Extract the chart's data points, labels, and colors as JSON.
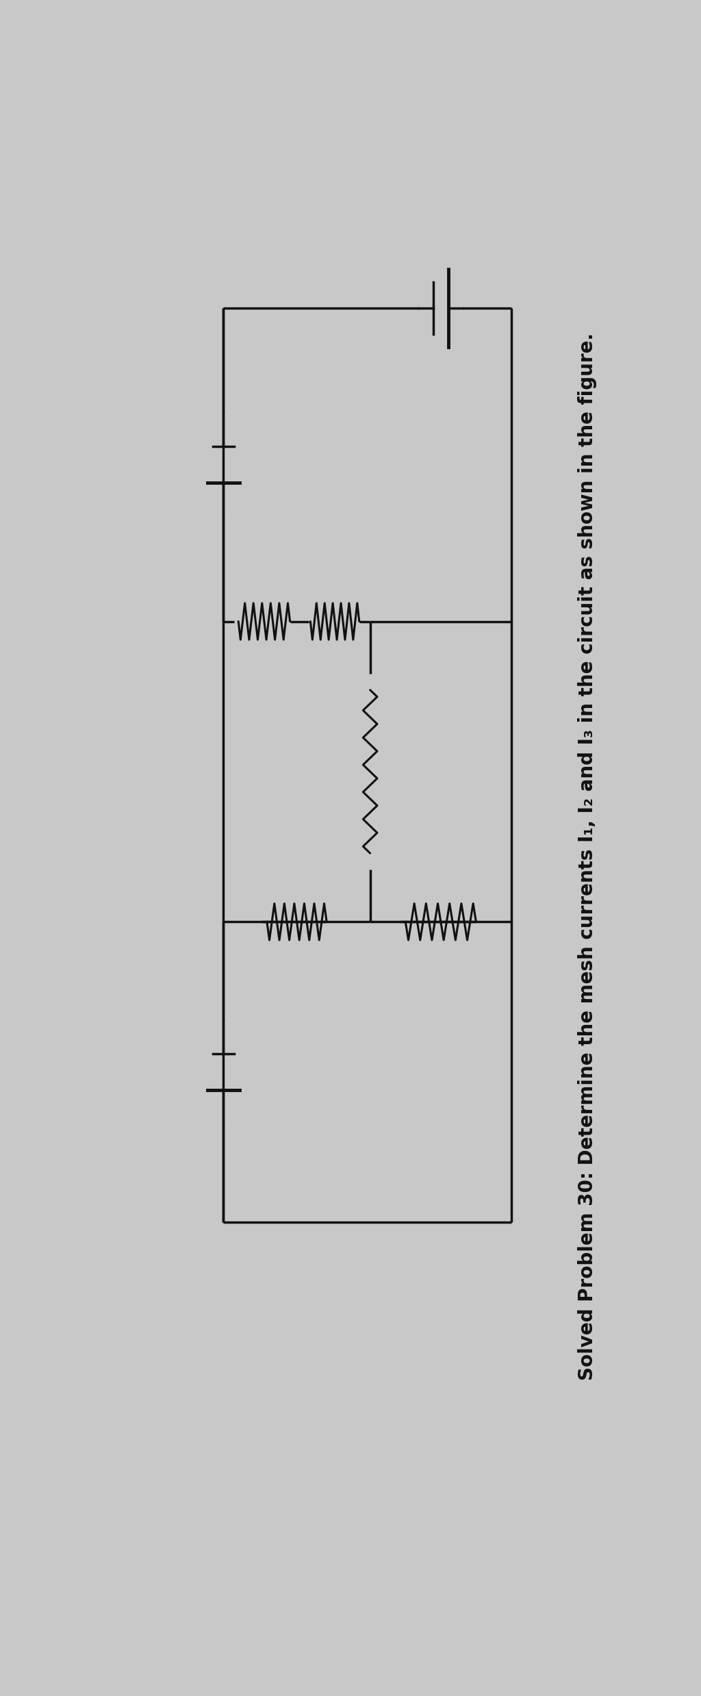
{
  "bg_color": "#c8c8c8",
  "line_color": "#111111",
  "label_fontsize": 16,
  "title_fontsize": 20,
  "title": "Solved Problem 30: Determine the mesh currents I₁, I₂ and I₃ in the circuit as shown in the figure.",
  "lw": 2.5,
  "nodes": {
    "yt": 0.78,
    "ym": 0.52,
    "yb": 0.25,
    "xl": 0.08,
    "xm1": 0.32,
    "xm2": 0.55,
    "xr": 0.78
  }
}
